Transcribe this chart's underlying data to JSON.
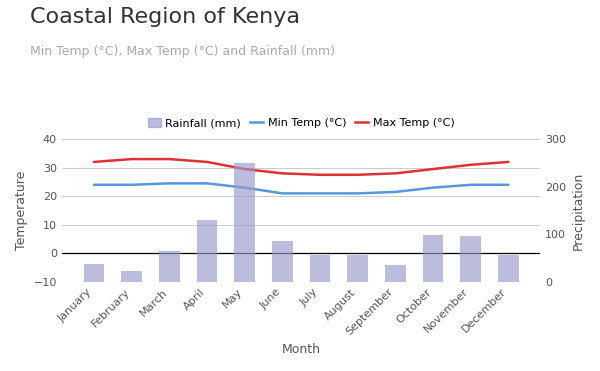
{
  "title": "Coastal Region of Kenya",
  "subtitle": "Min Temp (°C), Max Temp (°C) and Rainfall (mm)",
  "xlabel": "Month",
  "ylabel_left": "Temperature",
  "ylabel_right": "Precipitation",
  "months": [
    "January",
    "February",
    "March",
    "April",
    "May",
    "June",
    "July",
    "August",
    "September",
    "October",
    "November",
    "December"
  ],
  "rainfall_mm": [
    38,
    23,
    64,
    130,
    250,
    87,
    57,
    57,
    35,
    98,
    97,
    57
  ],
  "min_temp": [
    24,
    24,
    24.5,
    24.5,
    23,
    21,
    21,
    21,
    21.5,
    23,
    24,
    24
  ],
  "max_temp": [
    32,
    33,
    33,
    32,
    29.5,
    28,
    27.5,
    27.5,
    28,
    29.5,
    31,
    32
  ],
  "bar_color": "#9999cc",
  "bar_alpha": 0.65,
  "min_temp_color": "#5599dd",
  "max_temp_color": "#dd3333",
  "left_ylim": [
    -10,
    40
  ],
  "right_ylim": [
    0,
    300
  ],
  "left_yticks": [
    -10,
    0,
    10,
    20,
    30,
    40
  ],
  "right_yticks": [
    0,
    100,
    200,
    300
  ],
  "background_color": "#ffffff",
  "grid_color": "#cccccc",
  "title_fontsize": 16,
  "subtitle_fontsize": 9,
  "axis_label_fontsize": 9,
  "tick_fontsize": 8,
  "legend_fontsize": 8,
  "line_width": 1.8
}
